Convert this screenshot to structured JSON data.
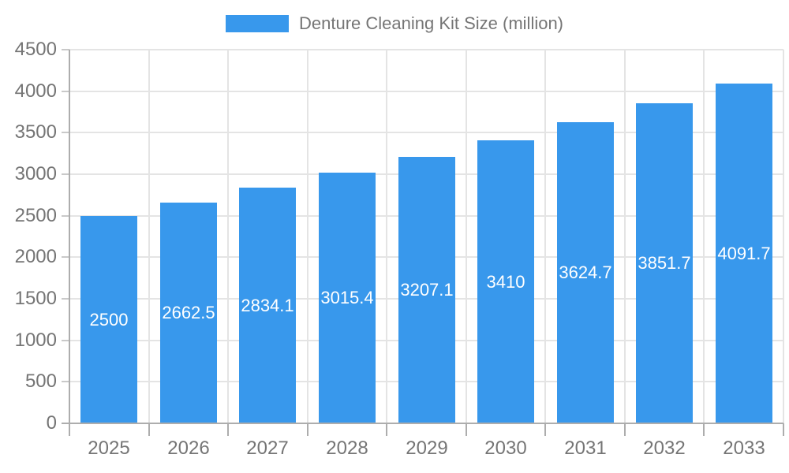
{
  "legend": {
    "label": "Denture Cleaning Kit Size (million)"
  },
  "colors": {
    "bar": "#3898EC",
    "grid": "#E4E4E4",
    "axis": "#ADADAD",
    "tick": "#C9C9C9",
    "muted_text": "#757575",
    "value_text": "#FFFFFF"
  },
  "chart_data": {
    "type": "bar",
    "title": "",
    "legend_entries": [
      "Denture Cleaning Kit Size (million)"
    ],
    "legend_position": "top-center",
    "categories": [
      "2025",
      "2026",
      "2027",
      "2028",
      "2029",
      "2030",
      "2031",
      "2032",
      "2033"
    ],
    "series": [
      {
        "name": "Denture Cleaning Kit Size (million)",
        "values": [
          2500,
          2662.5,
          2834.1,
          3015.4,
          3207.1,
          3410,
          3624.7,
          3851.7,
          4091.7
        ]
      }
    ],
    "value_labels": [
      "2500",
      "2662.5",
      "2834.1",
      "3015.4",
      "3207.1",
      "3410",
      "3624.7",
      "3851.7",
      "4091.7"
    ],
    "value_label_position": "inside-center",
    "xlabel": "",
    "ylabel": "",
    "ylim": [
      0,
      4500
    ],
    "ytick_step": 500,
    "ytick_labels": [
      "0",
      "500",
      "1000",
      "1500",
      "2000",
      "2500",
      "3000",
      "3500",
      "4000",
      "4500"
    ],
    "grid": true
  }
}
